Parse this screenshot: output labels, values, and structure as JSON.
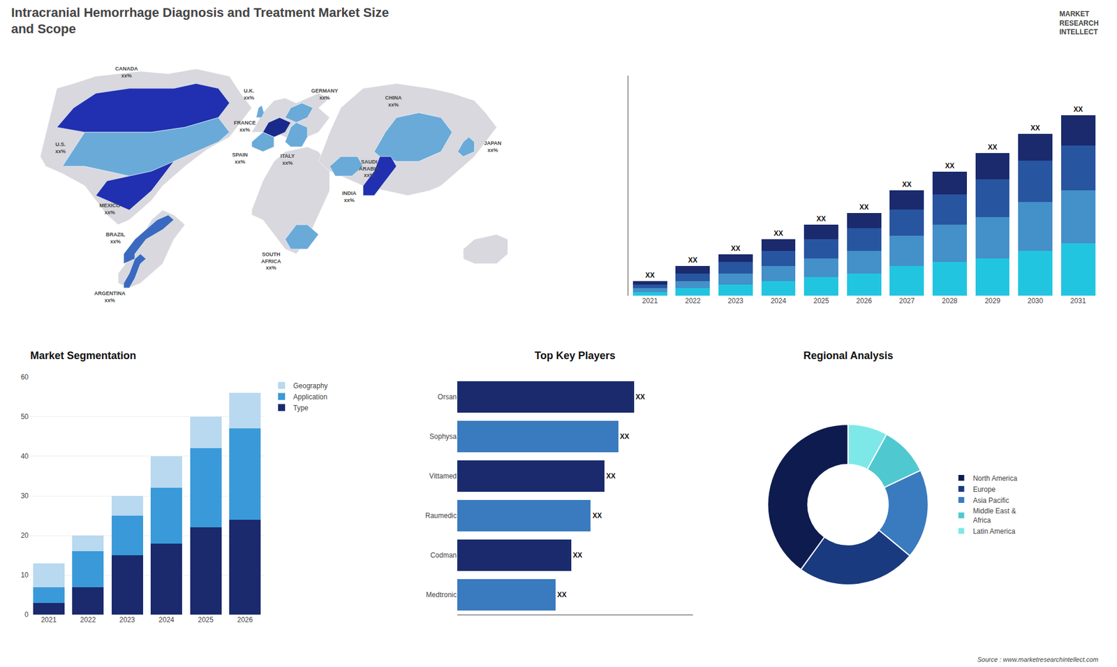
{
  "title": "Intracranial Hemorrhage Diagnosis and Treatment Market Size\nand Scope",
  "annotations": [
    "MARKET",
    "RESEARCH",
    "INTELLECT",
    "Source : www.marketresearchintellect.com"
  ],
  "chart_data": [
    {
      "type": "map",
      "annotations": [
        "CANADA\nxx%",
        "U.S.\nxx%",
        "MEXICO\nxx%",
        "BRAZIL\nxx%",
        "ARGENTINA\nxx%",
        "U.K.\nxx%",
        "FRANCE\nxx%",
        "SPAIN\nxx%",
        "GERMANY\nxx%",
        "ITALY\nxx%",
        "SAUDI\nARABIA\nxx%",
        "SOUTH\nAFRICA\nxx%",
        "CHINA\nxx%",
        "INDIA\nxx%",
        "JAPAN\nxx%"
      ],
      "colors": [
        "#2030b0",
        "#6aaad8",
        "#2030b0",
        "#3a6abf",
        "#3a6abf",
        "#6aaad8",
        "#1a2a8c",
        "#6aaad8",
        "#6aaad8",
        "#6aaad8",
        "#6aaad8",
        "#6aaad8",
        "#6aaad8",
        "#2030b0",
        "#6aaad8"
      ],
      "color": "#d8d8de"
    },
    {
      "type": "bar",
      "stacked": true,
      "categories": [
        "2021",
        "2022",
        "2023",
        "2024",
        "2025",
        "2026",
        "2027",
        "2028",
        "2029",
        "2030",
        "2031"
      ],
      "series": [
        {
          "color": "#22c5e0",
          "values": [
            1,
            2,
            3,
            4,
            5,
            6,
            8,
            9,
            10,
            12,
            14
          ]
        },
        {
          "color": "#4490c8",
          "values": [
            1,
            2,
            3,
            4,
            5,
            6,
            8,
            10,
            11,
            13,
            14
          ]
        },
        {
          "color": "#2855a0",
          "values": [
            1,
            2,
            3,
            4,
            5,
            6,
            7,
            8,
            10,
            11,
            12
          ]
        },
        {
          "color": "#1a2a6c",
          "values": [
            1,
            2,
            2,
            3,
            4,
            4,
            5,
            6,
            7,
            7,
            8
          ],
          "value_labels": [
            "XX",
            "XX",
            "XX",
            "XX",
            "XX",
            "XX",
            "XX",
            "XX",
            "XX",
            "XX",
            "XX"
          ]
        }
      ],
      "ylim": [
        0,
        58.56
      ],
      "tick_labels": "x",
      "grid": false
    },
    {
      "type": "bar",
      "stacked": true,
      "title": "Market Segmentation",
      "categories": [
        "2021",
        "2022",
        "2023",
        "2024",
        "2025",
        "2026"
      ],
      "series": [
        {
          "name": "Type",
          "color": "#1a2a6c",
          "values": [
            3,
            7,
            15,
            18,
            22,
            24
          ]
        },
        {
          "name": "Application",
          "color": "#3a9ad9",
          "values": [
            4,
            9,
            10,
            14,
            20,
            23
          ]
        },
        {
          "name": "Geography",
          "color": "#b8d9f0",
          "values": [
            6,
            4,
            5,
            8,
            8,
            9
          ]
        }
      ],
      "ylim": [
        0,
        60
      ],
      "yticks": [
        0,
        10,
        20,
        30,
        40,
        50,
        60
      ],
      "grid": true,
      "legend": "upper right"
    },
    {
      "type": "bar",
      "orientation": "horizontal",
      "title": "Top Key Players",
      "categories": [
        "Orsan",
        "Sophysa",
        "Vittamed",
        "Raumedic",
        "Codman",
        "Medtronic"
      ],
      "values": [
        90,
        82,
        75,
        68,
        58,
        50
      ],
      "colors": [
        "#1a2a6c",
        "#3a7abf",
        "#1a2a6c",
        "#3a7abf",
        "#1a2a6c",
        "#3a7abf"
      ],
      "value_labels": [
        "XX",
        "XX",
        "XX",
        "XX",
        "XX",
        "XX"
      ],
      "xlim": [
        0,
        120
      ],
      "tick_labels": "y",
      "grid": false
    },
    {
      "type": "pie",
      "title": "Regional Analysis",
      "categories": [
        "Latin America",
        "Middle East &\nAfrica",
        "Asia Pacific",
        "Europe",
        "North America"
      ],
      "values": [
        8,
        10,
        18,
        24,
        40
      ],
      "colors": [
        "#7ee8e8",
        "#50c8d0",
        "#3a7abf",
        "#1a3a80",
        "#0d1b4f"
      ],
      "legend": "right"
    }
  ]
}
